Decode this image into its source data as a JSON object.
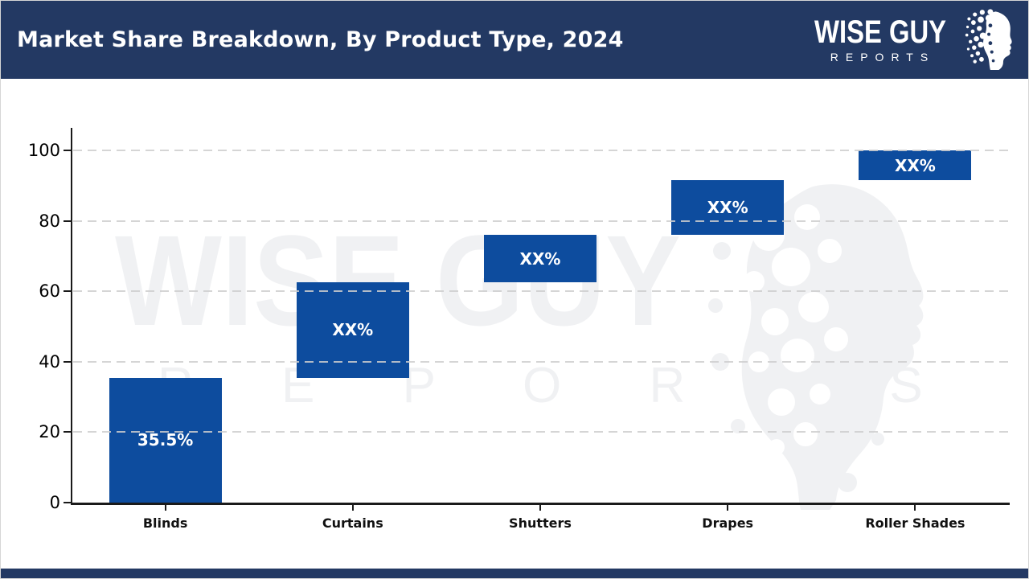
{
  "header": {
    "title": "Market Share Breakdown, By Product Type, 2024",
    "logo": {
      "line1": "WISE GUY",
      "line2": "REPORTS"
    }
  },
  "watermark": {
    "line1": "WISE GUY",
    "line2": "R E P O R T S"
  },
  "colors": {
    "header_bg": "#233963",
    "footer_bg": "#233963",
    "bar": "#0d4c9e",
    "bar_label": "#ffffff",
    "axis": "#1a1a1a",
    "grid": "rgba(206,206,206,0.85)",
    "watermark": "#f0f1f3"
  },
  "chart_data": {
    "type": "bar",
    "subtype": "waterfall",
    "title": "Market Share Breakdown, By Product Type, 2024",
    "categories": [
      "Blinds",
      "Curtains",
      "Shutters",
      "Drapes",
      "Roller Shades"
    ],
    "segments": [
      {
        "category": "Blinds",
        "start": 0,
        "end": 35.5,
        "label": "35.5%"
      },
      {
        "category": "Curtains",
        "start": 35.5,
        "end": 62.5,
        "label": "XX%"
      },
      {
        "category": "Shutters",
        "start": 62.5,
        "end": 76,
        "label": "XX%"
      },
      {
        "category": "Drapes",
        "start": 76,
        "end": 91.5,
        "label": "XX%"
      },
      {
        "category": "Roller Shades",
        "start": 91.5,
        "end": 100,
        "label": "XX%"
      }
    ],
    "ylim": [
      0,
      100
    ],
    "yticks": [
      0,
      20,
      40,
      60,
      80,
      100
    ],
    "xlabel": "",
    "ylabel": "",
    "grid": "horizontal-dashed",
    "legend": false
  }
}
